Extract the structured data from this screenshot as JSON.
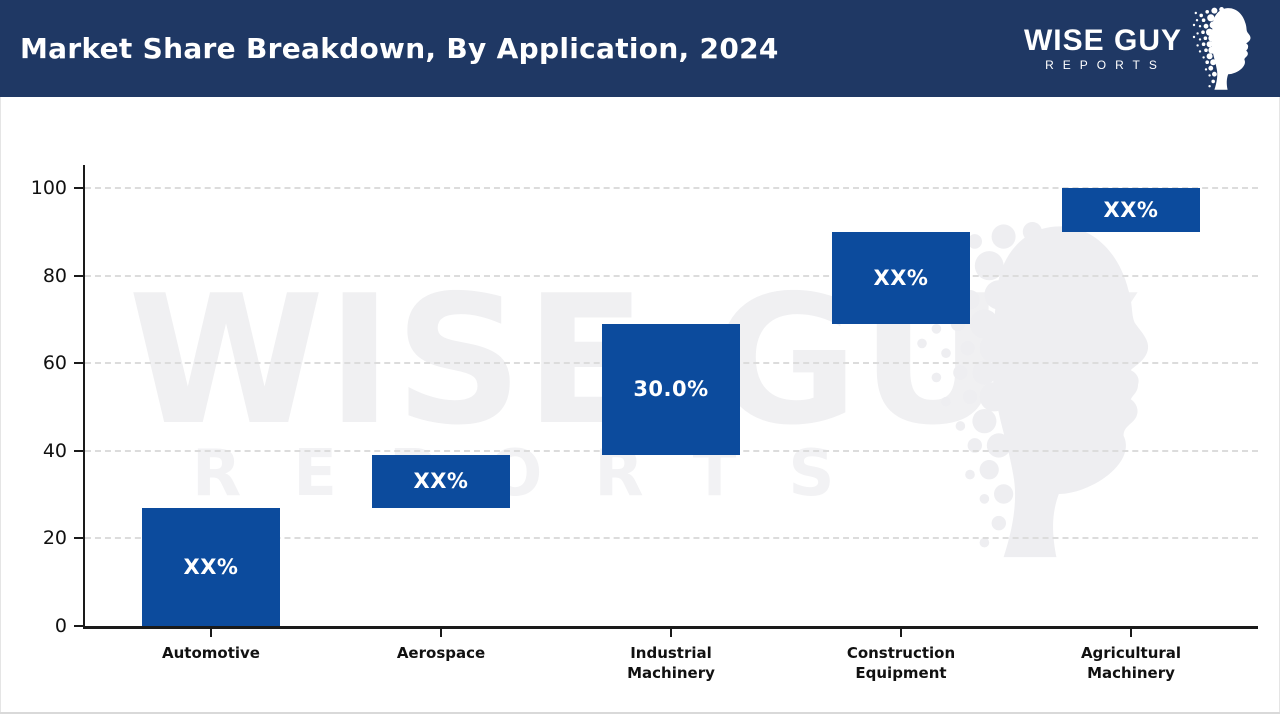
{
  "header": {
    "title": "Market Share Breakdown, By Application, 2024",
    "logo": {
      "wordmark": "WISE GUY",
      "subtitle": "REPORTS"
    }
  },
  "watermark": {
    "wordmark": "WISE GUY",
    "subtitle": "REPORTS"
  },
  "chart_data": {
    "type": "bar",
    "variant": "waterfall",
    "title": "Market Share Breakdown, By Application, 2024",
    "categories": [
      [
        "Automotive"
      ],
      [
        "Aerospace"
      ],
      [
        "Industrial",
        "Machinery"
      ],
      [
        "Construction",
        "Equipment"
      ],
      [
        "Agricultural",
        "Machinery"
      ]
    ],
    "segments": [
      {
        "category": "Automotive",
        "start": 0,
        "end": 27,
        "value": 27,
        "label": "XX%"
      },
      {
        "category": "Aerospace",
        "start": 27,
        "end": 39,
        "value": 12,
        "label": "XX%"
      },
      {
        "category": "Industrial Machinery",
        "start": 39,
        "end": 69,
        "value": 30,
        "label": "30.0%"
      },
      {
        "category": "Construction Equipment",
        "start": 69,
        "end": 90,
        "value": 21,
        "label": "XX%"
      },
      {
        "category": "Agricultural Machinery",
        "start": 90,
        "end": 100,
        "value": 10,
        "label": "XX%"
      }
    ],
    "xlabel": "",
    "ylabel": "",
    "ylim": [
      0,
      105
    ],
    "yticks": [
      0,
      20,
      40,
      60,
      80,
      100
    ],
    "grid": {
      "axis": "y",
      "style": "dashed",
      "color": "#dcdcdc"
    },
    "legend": "none",
    "colors": {
      "bar": "#0c4b9d",
      "bar_label": "#ffffff",
      "axis": "#1a1a1a",
      "tick_label": "#111111",
      "header_bg": "#1f3864",
      "watermark": "#f0f0f2"
    }
  }
}
